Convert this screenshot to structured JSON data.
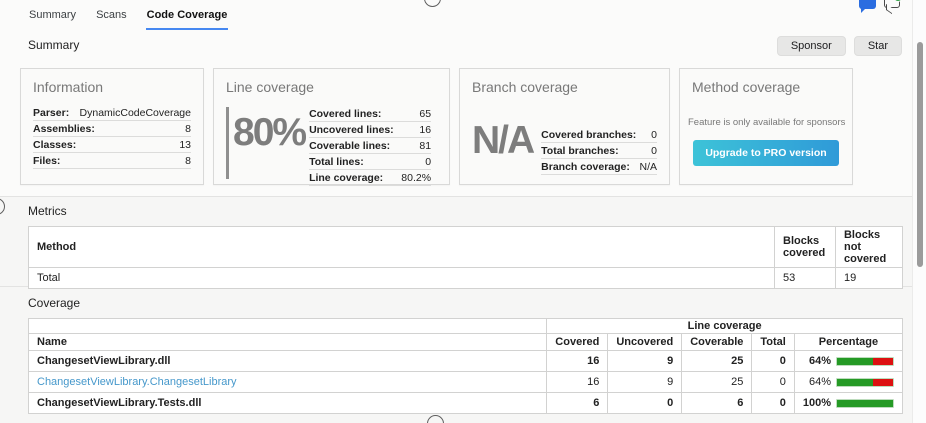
{
  "tabs": [
    {
      "label": "Summary"
    },
    {
      "label": "Scans"
    },
    {
      "label": "Code Coverage"
    }
  ],
  "summary": {
    "title": "Summary",
    "sponsor_button": "Sponsor",
    "star_button": "Star"
  },
  "cards": {
    "information": {
      "title": "Information",
      "rows": [
        {
          "label": "Parser:",
          "value": "DynamicCodeCoverage"
        },
        {
          "label": "Assemblies:",
          "value": "8"
        },
        {
          "label": "Classes:",
          "value": "13"
        },
        {
          "label": "Files:",
          "value": "8"
        }
      ]
    },
    "line_coverage": {
      "title": "Line coverage",
      "big_value": "80%",
      "rows": [
        {
          "label": "Covered lines:",
          "value": "65"
        },
        {
          "label": "Uncovered lines:",
          "value": "16"
        },
        {
          "label": "Coverable lines:",
          "value": "81"
        },
        {
          "label": "Total lines:",
          "value": "0"
        },
        {
          "label": "Line coverage:",
          "value": "80.2%"
        }
      ]
    },
    "branch_coverage": {
      "title": "Branch coverage",
      "big_value": "N/A",
      "rows": [
        {
          "label": "Covered branches:",
          "value": "0"
        },
        {
          "label": "Total branches:",
          "value": "0"
        },
        {
          "label": "Branch coverage:",
          "value": "N/A"
        }
      ]
    },
    "method_coverage": {
      "title": "Method coverage",
      "note": "Feature is only available for sponsors",
      "button": "Upgrade to PRO version"
    }
  },
  "metrics": {
    "title": "Metrics",
    "columns": [
      "Method",
      "Blocks covered",
      "Blocks not covered"
    ],
    "rows": [
      {
        "method": "Total",
        "blocks_covered": "53",
        "blocks_not_covered": "19"
      }
    ]
  },
  "coverage": {
    "title": "Coverage",
    "group_header": "Line coverage",
    "columns": [
      "Name",
      "Covered",
      "Uncovered",
      "Coverable",
      "Total",
      "Percentage"
    ],
    "rows": [
      {
        "name": "ChangesetViewLibrary.dll",
        "covered": "16",
        "uncovered": "9",
        "coverable": "25",
        "total": "0",
        "percentage": "64%",
        "percent": 64
      },
      {
        "name": "ChangesetViewLibrary.ChangesetLibrary",
        "covered": "16",
        "uncovered": "9",
        "coverable": "25",
        "total": "0",
        "percentage": "64%",
        "percent": 64
      },
      {
        "name": "ChangesetViewLibrary.Tests.dll",
        "covered": "6",
        "uncovered": "0",
        "coverable": "6",
        "total": "0",
        "percentage": "100%",
        "percent": 100
      }
    ]
  },
  "colors": {
    "tab_accent": "#4688f1",
    "link_blue": "#4698cb",
    "bar_green": "#259a25",
    "bar_red": "#dd1111",
    "pro_button_start": "#3dc3d8",
    "pro_button_end": "#2f9ad8"
  }
}
